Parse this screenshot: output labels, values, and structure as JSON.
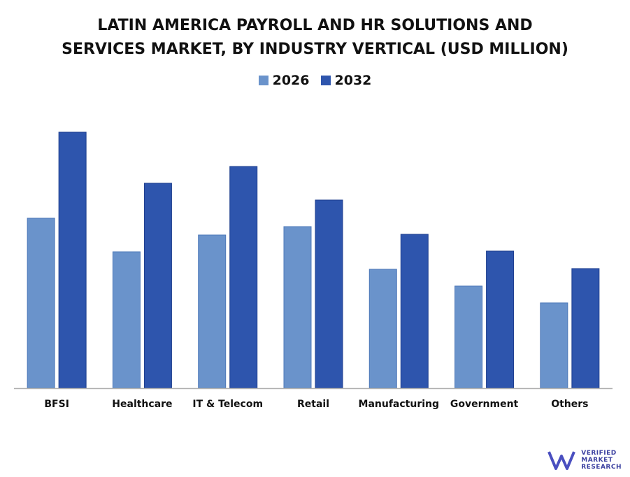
{
  "title_line1": "LATIN AMERICA PAYROLL AND HR SOLUTIONS AND",
  "title_line2": "SERVICES MARKET, BY INDUSTRY VERTICAL (USD MILLION)",
  "legend": [
    {
      "label": "2026",
      "color": "#6a93cb"
    },
    {
      "label": "2032",
      "color": "#2e55ad"
    }
  ],
  "logo": {
    "line1": "VERIFIED",
    "line2": "MARKET",
    "line3": "RESEARCH",
    "mark": "VMR"
  },
  "chart_data": {
    "type": "bar",
    "title": "LATIN AMERICA PAYROLL AND HR SOLUTIONS AND SERVICES MARKET, BY INDUSTRY VERTICAL (USD MILLION)",
    "categories": [
      "BFSI",
      "Healthcare",
      "IT & Telecom",
      "Retail",
      "Manufacturing",
      "Government",
      "Others"
    ],
    "series": [
      {
        "name": "2026",
        "color": "#6a93cb",
        "values": [
          243,
          195,
          219,
          231,
          170,
          146,
          122
        ]
      },
      {
        "name": "2032",
        "color": "#2e55ad",
        "values": [
          366,
          293,
          317,
          269,
          220,
          196,
          171
        ]
      }
    ],
    "ylim": [
      0,
      400
    ],
    "grid": false,
    "legend_position": "top"
  }
}
